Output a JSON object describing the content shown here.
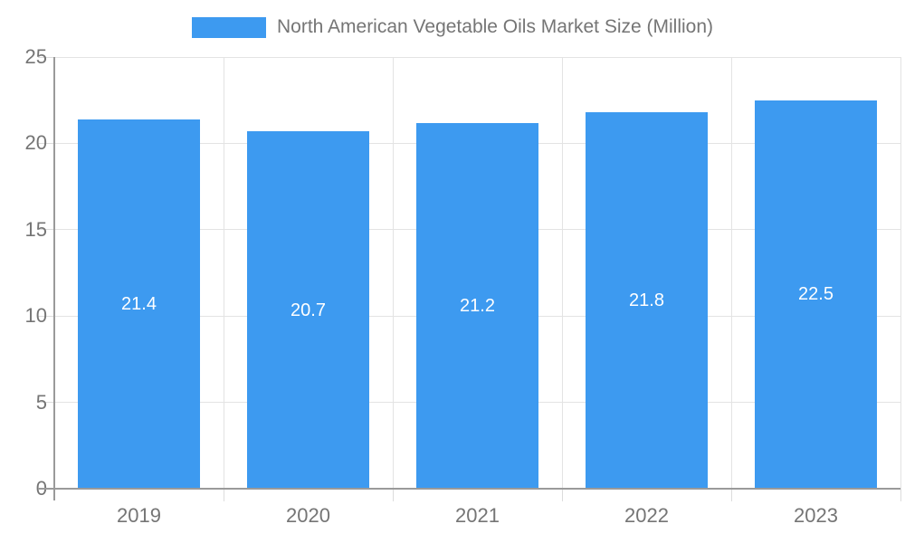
{
  "chart_data": {
    "type": "bar",
    "title": "North American Vegetable Oils Market Size (Million)",
    "categories": [
      "2019",
      "2020",
      "2021",
      "2022",
      "2023"
    ],
    "values": [
      21.4,
      20.7,
      21.2,
      21.8,
      22.5
    ],
    "value_labels": [
      "21.4",
      "20.7",
      "21.2",
      "21.8",
      "22.5"
    ],
    "xlabel": "",
    "ylabel": "",
    "ylim": [
      0,
      25
    ],
    "yticks": [
      0,
      5,
      10,
      15,
      20,
      25
    ],
    "ytick_labels": [
      "0",
      "5",
      "10",
      "15",
      "20",
      "25"
    ],
    "grid": true,
    "legend_position": "top",
    "colors": {
      "bar": "#3d9af0",
      "gridline": "#e3e3e3",
      "tick_mark": "#dcdcdc",
      "axis_line": "#9a9a9a",
      "tick_label_text": "#757575",
      "legend_text": "#757575",
      "bar_value_text": "#ffffff",
      "background": "#ffffff"
    }
  }
}
